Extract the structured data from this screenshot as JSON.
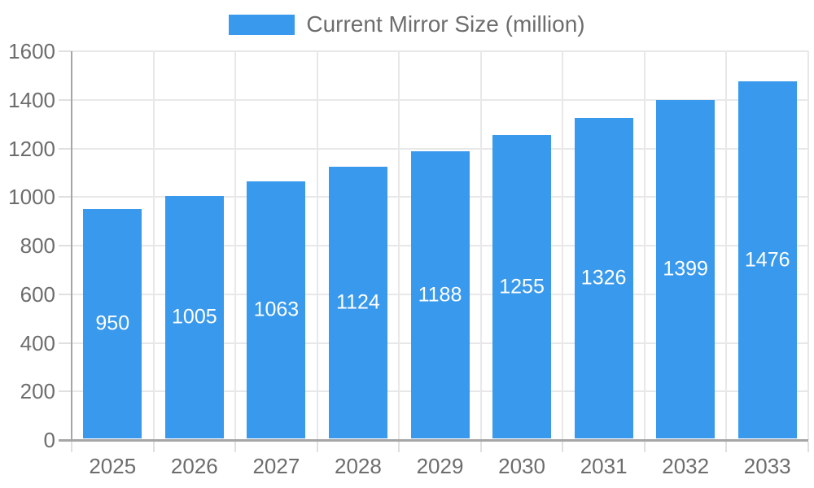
{
  "legend": {
    "label": "Current Mirror Size (million)"
  },
  "chart_data": {
    "type": "bar",
    "title": "",
    "xlabel": "",
    "ylabel": "",
    "categories": [
      "2025",
      "2026",
      "2027",
      "2028",
      "2029",
      "2030",
      "2031",
      "2032",
      "2033"
    ],
    "series": [
      {
        "name": "Current Mirror Size (million)",
        "values": [
          950,
          1005,
          1063,
          1124,
          1188,
          1255,
          1326,
          1399,
          1476
        ]
      }
    ],
    "ylim": [
      0,
      1600
    ],
    "ytick_step": 200,
    "ytick_labels": [
      "0",
      "200",
      "400",
      "600",
      "800",
      "1000",
      "1200",
      "1400",
      "1600"
    ],
    "grid": true,
    "legend_position": "top",
    "value_labels": "inside-center"
  },
  "colors": {
    "bar": "#3999EC",
    "grid": "#E8E8E8",
    "tick": "#E0E0E0",
    "axis": "#A6A6A6",
    "text": "#6D6D6D",
    "value_label": "#FFFFFF",
    "background": "#FFFFFF"
  }
}
